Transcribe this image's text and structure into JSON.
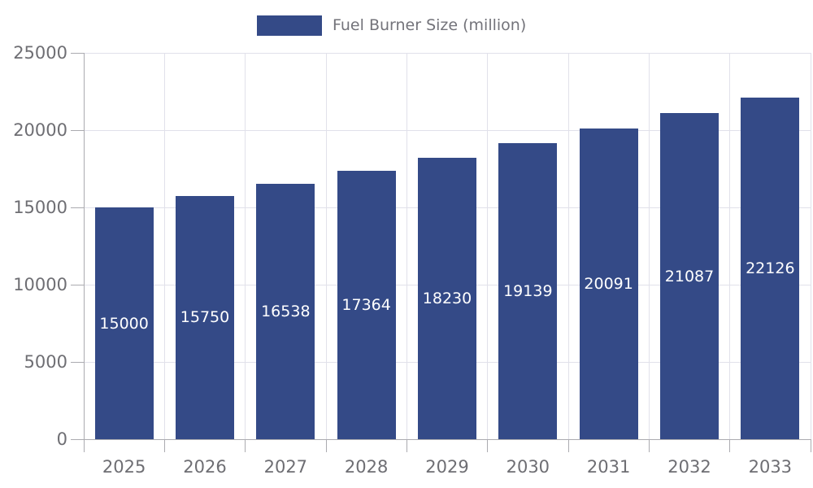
{
  "chart_data": {
    "type": "bar",
    "title": "",
    "legend": "Fuel Burner Size (million)",
    "legend_position": "top-center",
    "categories": [
      "2025",
      "2026",
      "2027",
      "2028",
      "2029",
      "2030",
      "2031",
      "2032",
      "2033"
    ],
    "series": [
      {
        "name": "Fuel Burner Size (million)",
        "values": [
          15000,
          15750,
          16538,
          17364,
          18230,
          19139,
          20091,
          21087,
          22126
        ]
      }
    ],
    "value_labels": [
      "15000",
      "15750",
      "16538",
      "17364",
      "18230",
      "19139",
      "20091",
      "21087",
      "22126"
    ],
    "xlabel": "",
    "ylabel": "",
    "ylim": [
      0,
      25000
    ],
    "y_ticks": [
      0,
      5000,
      10000,
      15000,
      20000,
      25000
    ],
    "y_tick_labels": [
      "0",
      "5000",
      "10000",
      "15000",
      "20000",
      "25000"
    ],
    "grid": "both",
    "colors": {
      "bar": "#344A87",
      "value_label": "#FFFFFF",
      "grid_line": "#E1E1EA",
      "axis_line": "#ABABB0",
      "tick_line": "#ABABB0",
      "axis_label": "#6E6E73",
      "legend_text": "#73737A",
      "background": "#FFFFFF"
    }
  }
}
